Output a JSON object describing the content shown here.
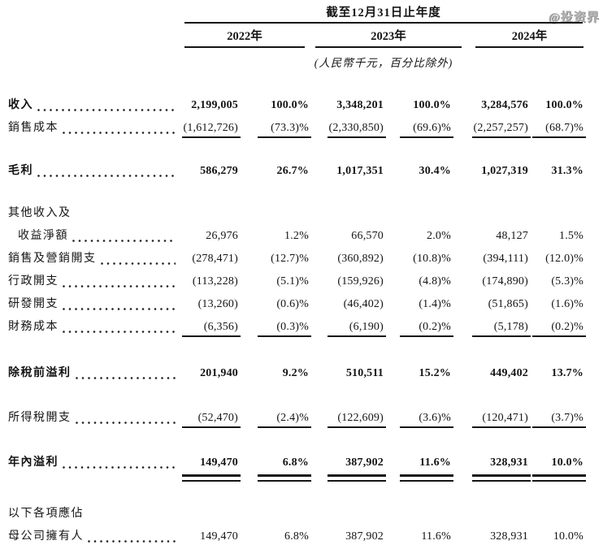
{
  "watermark": "@投资界",
  "header": {
    "period_title": "截至12月31日止年度",
    "years": [
      "2022年",
      "2023年",
      "2024年"
    ],
    "unit_note": "(人民幣千元，百分比除外)"
  },
  "table": {
    "rows": [
      {
        "label": "收入",
        "v": [
          "2,199,005",
          "100.0%",
          "3,348,201",
          "100.0%",
          "3,284,576",
          "100.0%"
        ]
      },
      {
        "label": "銷售成本",
        "v": [
          "(1,612,726)",
          "(73.3)%",
          "(2,330,850)",
          "(69.6)%",
          "(2,257,257)",
          "(68.7)%"
        ]
      },
      {
        "label": "毛利",
        "v": [
          "586,279",
          "26.7%",
          "1,017,351",
          "30.4%",
          "1,027,319",
          "31.3%"
        ]
      },
      {
        "label": "其他收入及",
        "v": []
      },
      {
        "label": "收益淨額",
        "v": [
          "26,976",
          "1.2%",
          "66,570",
          "2.0%",
          "48,127",
          "1.5%"
        ]
      },
      {
        "label": "銷售及營銷開支",
        "v": [
          "(278,471)",
          "(12.7)%",
          "(360,892)",
          "(10.8)%",
          "(394,111)",
          "(12.0)%"
        ]
      },
      {
        "label": "行政開支",
        "v": [
          "(113,228)",
          "(5.1)%",
          "(159,926)",
          "(4.8)%",
          "(174,890)",
          "(5.3)%"
        ]
      },
      {
        "label": "研發開支",
        "v": [
          "(13,260)",
          "(0.6)%",
          "(46,402)",
          "(1.4)%",
          "(51,865)",
          "(1.6)%"
        ]
      },
      {
        "label": "財務成本",
        "v": [
          "(6,356)",
          "(0.3)%",
          "(6,190)",
          "(0.2)%",
          "(5,178)",
          "(0.2)%"
        ]
      },
      {
        "label": "除稅前溢利",
        "v": [
          "201,940",
          "9.2%",
          "510,511",
          "15.2%",
          "449,402",
          "13.7%"
        ]
      },
      {
        "label": "所得稅開支",
        "v": [
          "(52,470)",
          "(2.4)%",
          "(122,609)",
          "(3.6)%",
          "(120,471)",
          "(3.7)%"
        ]
      },
      {
        "label": "年內溢利",
        "v": [
          "149,470",
          "6.8%",
          "387,902",
          "11.6%",
          "328,931",
          "10.0%"
        ]
      },
      {
        "label": "以下各項應佔",
        "v": []
      },
      {
        "label": "母公司擁有人",
        "v": [
          "149,470",
          "6.8%",
          "387,902",
          "11.6%",
          "328,931",
          "10.0%"
        ]
      }
    ]
  }
}
